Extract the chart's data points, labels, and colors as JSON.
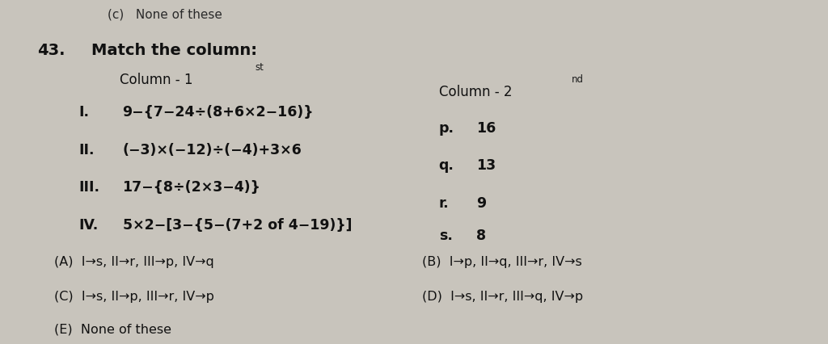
{
  "bg_color": "#c8c4bc",
  "title_num": "43.",
  "title_text": "Match the column:",
  "col1_header": "Column - 1",
  "col1_sup": "st",
  "col2_header": "Column - 2",
  "col2_sup": "nd",
  "col1_roman": [
    "I.",
    "II.",
    "III.",
    "IV."
  ],
  "col1_exprs": [
    "9−{7−24÷(8+6×2−16)}",
    "(−3)×(−12)÷(−4)+3×6",
    "17−{8÷(2×3−4)}",
    "5×2−[3−{5−(7+2 of 4−19)}]"
  ],
  "col2_labels": [
    "p.",
    "q.",
    "r.",
    "s."
  ],
  "col2_vals": [
    "16",
    "13",
    "9",
    "8"
  ],
  "optA": "(A)  I→s, II→r, III→p, IV→q",
  "optB": "(B)  I→p, II→q, III→r, IV→s",
  "optC": "(C)  I→s, II→p, III→r, IV→p",
  "optD": "(D)  I→s, II→r, III→q, IV→p",
  "optE": "(E)  None of these",
  "top_text": "(c)   None of these"
}
